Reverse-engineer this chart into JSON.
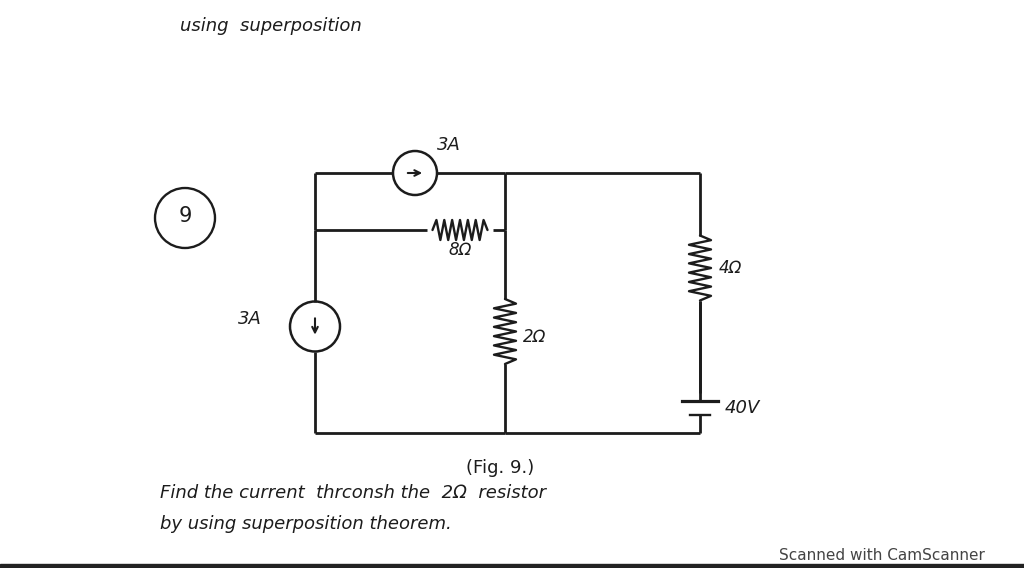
{
  "bg_color": "#ffffff",
  "page_bg": "#e8e8e8",
  "dark_color": "#1c1c1c",
  "fig_width": 10.24,
  "fig_height": 5.68,
  "question_num": "9",
  "circuit_label": "(Fig. 9.)",
  "bottom_text_line1": "Find the current  thrconsh the  2Ω  resistor",
  "bottom_text_line2": "by using superposition theorem.",
  "scanner_text": "Scanned with CamScanner",
  "source_3A_label": "3A",
  "source_top_label": "3A",
  "resistor_8_label": "8Ω",
  "resistor_2_label": "2Ω",
  "resistor_4_label": "4Ω",
  "voltage_label": "40V",
  "title_top": "using  superposition"
}
